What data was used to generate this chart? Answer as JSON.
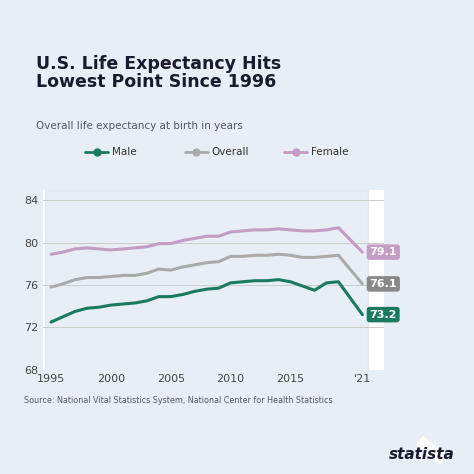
{
  "title_line1": "U.S. Life Expectancy Hits",
  "title_line2": "Lowest Point Since 1996",
  "subtitle": "Overall life expectancy at birth in years",
  "source": "Source: National Vital Statistics System, National Center for Health Statistics",
  "bg_color": "#e8eef5",
  "plot_bg_color": "#ffffff",
  "title_color": "#1a1a2e",
  "accent_bar_color": "#1a9e7e",
  "years": [
    1995,
    1996,
    1997,
    1998,
    1999,
    2000,
    2001,
    2002,
    2003,
    2004,
    2005,
    2006,
    2007,
    2008,
    2009,
    2010,
    2011,
    2012,
    2013,
    2014,
    2015,
    2016,
    2017,
    2018,
    2019,
    2021
  ],
  "male": [
    72.5,
    73.0,
    73.5,
    73.8,
    73.9,
    74.1,
    74.2,
    74.3,
    74.5,
    74.9,
    74.9,
    75.1,
    75.4,
    75.6,
    75.7,
    76.2,
    76.3,
    76.4,
    76.4,
    76.5,
    76.3,
    75.9,
    75.5,
    76.2,
    76.3,
    73.2
  ],
  "overall": [
    75.8,
    76.1,
    76.5,
    76.7,
    76.7,
    76.8,
    76.9,
    76.9,
    77.1,
    77.5,
    77.4,
    77.7,
    77.9,
    78.1,
    78.2,
    78.7,
    78.7,
    78.8,
    78.8,
    78.9,
    78.8,
    78.6,
    78.6,
    78.7,
    78.8,
    76.1
  ],
  "female": [
    78.9,
    79.1,
    79.4,
    79.5,
    79.4,
    79.3,
    79.4,
    79.5,
    79.6,
    79.9,
    79.9,
    80.2,
    80.4,
    80.6,
    80.6,
    81.0,
    81.1,
    81.2,
    81.2,
    81.3,
    81.2,
    81.1,
    81.1,
    81.2,
    81.4,
    79.1
  ],
  "male_color": "#1a7a5e",
  "overall_color": "#aaaaaa",
  "female_color": "#c49cc4",
  "shade_xmin": 1995,
  "shade_xmax": 2021,
  "ylim": [
    68,
    85
  ],
  "yticks": [
    68,
    72,
    76,
    80,
    84
  ],
  "xticks": [
    1995,
    2000,
    2005,
    2010,
    2015,
    2021
  ],
  "xlim_left": 1994.3,
  "xlim_right": 2022.8,
  "end_label_male": "73.2",
  "end_label_overall": "76.1",
  "end_label_female": "79.1",
  "end_color_male": "#1a7a5e",
  "end_color_overall": "#888888",
  "end_color_female": "#c49cc4",
  "statista_color": "#1a1a2e"
}
